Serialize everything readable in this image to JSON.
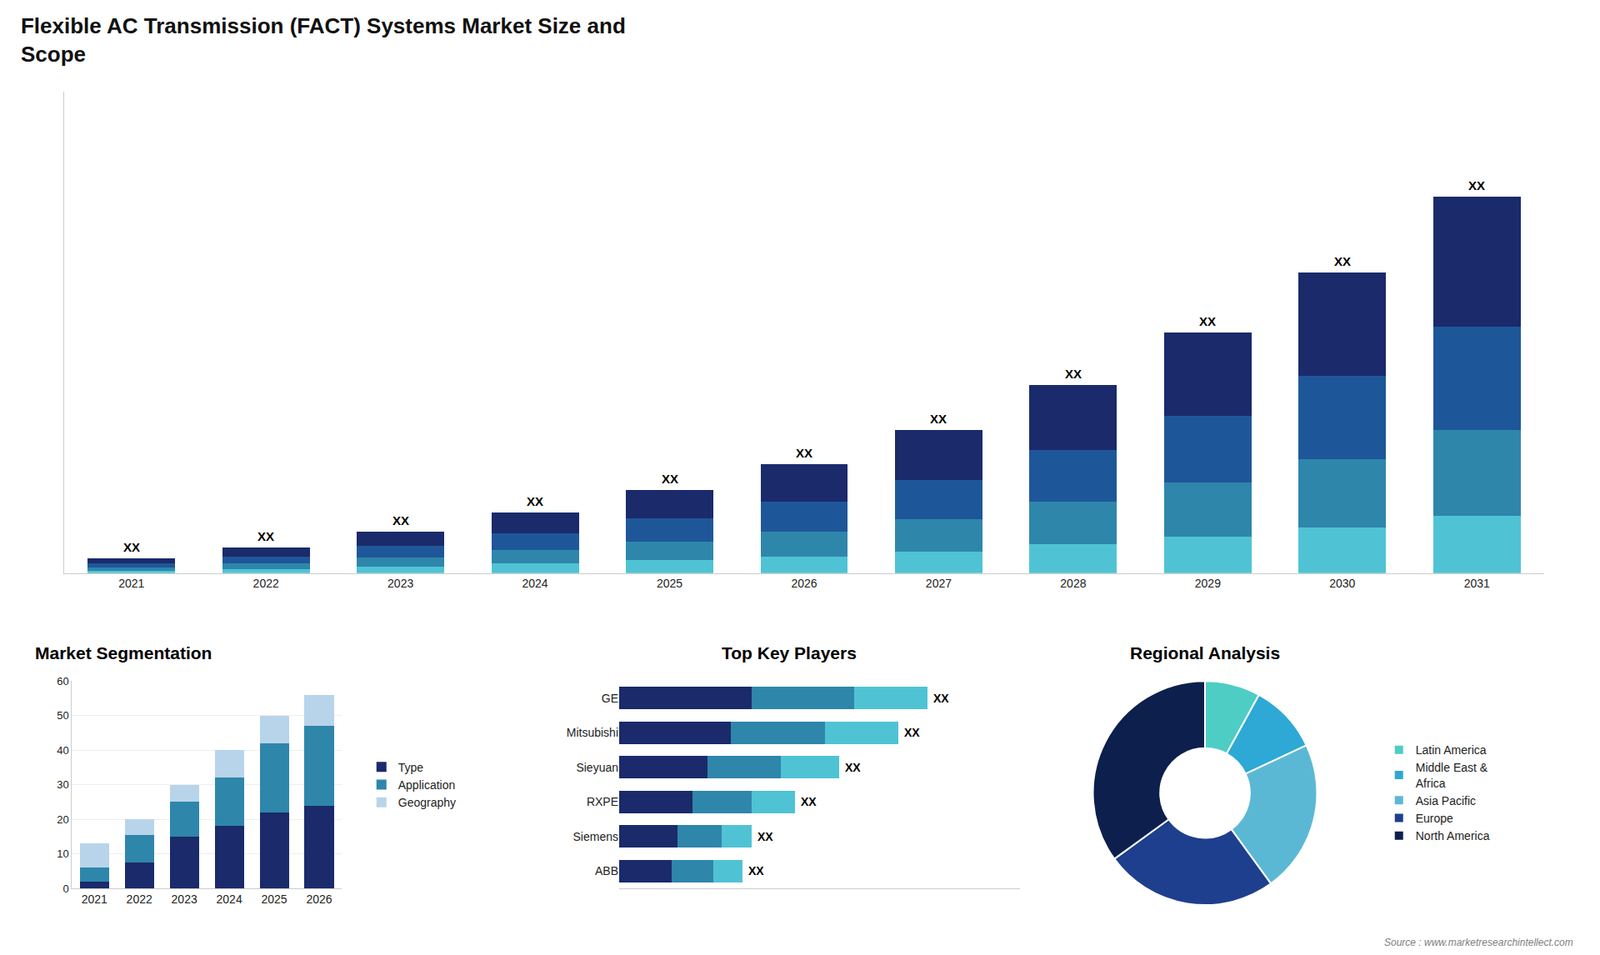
{
  "chart_data": [
    {
      "type": "bar",
      "title": "Flexible AC Transmission (FACT) Systems Market Size and\nScope",
      "categories": [
        "2021",
        "2022",
        "2023",
        "2024",
        "2025",
        "2026",
        "2027",
        "2028",
        "2029",
        "2030",
        "2031"
      ],
      "series": [
        {
          "color": "#4fc3d4",
          "values": [
            0.4,
            0.8,
            1.2,
            1.8,
            2.5,
            3.2,
            4.2,
            5.5,
            7.0,
            8.8,
            11.0
          ]
        },
        {
          "color": "#2e86ab",
          "values": [
            0.6,
            1.0,
            1.8,
            2.6,
            3.6,
            4.8,
            6.2,
            8.2,
            10.5,
            13.2,
            16.5
          ]
        },
        {
          "color": "#1e5799",
          "values": [
            0.8,
            1.4,
            2.2,
            3.2,
            4.4,
            5.8,
            7.6,
            10.0,
            12.8,
            16.0,
            20.0
          ]
        },
        {
          "color": "#1b2a6b",
          "values": [
            1.0,
            1.8,
            2.8,
            4.0,
            5.5,
            7.2,
            9.5,
            12.5,
            16.0,
            20.0,
            25.0
          ]
        }
      ],
      "stacked": true,
      "ylim": [
        0,
        92.8
      ],
      "tick_labels": "x",
      "grid": false,
      "annotations": [
        "XX",
        "XX",
        "XX",
        "XX",
        "XX",
        "XX",
        "XX",
        "XX",
        "XX",
        "XX",
        "XX"
      ]
    },
    {
      "type": "bar",
      "title": "Market Segmentation",
      "categories": [
        "2021",
        "2022",
        "2023",
        "2024",
        "2025",
        "2026"
      ],
      "series": [
        {
          "name": "Type",
          "color": "#1b2a6b",
          "values": [
            2,
            7.5,
            15,
            18,
            22,
            24
          ]
        },
        {
          "name": "Application",
          "color": "#2e86ab",
          "values": [
            4,
            8,
            10,
            14,
            20,
            23
          ]
        },
        {
          "name": "Geography",
          "color": "#b8d4ea",
          "values": [
            7,
            4.5,
            5,
            8,
            8,
            9
          ]
        }
      ],
      "stacked": true,
      "ylim": [
        0,
        60
      ],
      "yticks": [
        0,
        10,
        20,
        30,
        40,
        50,
        60
      ],
      "grid": true,
      "legend": "right"
    },
    {
      "type": "bar",
      "orientation": "horizontal",
      "title": "Top Key Players",
      "categories": [
        "GE",
        "Mitsubishi",
        "Sieyuan",
        "RXPE",
        "Siemens",
        "ABB"
      ],
      "series": [
        {
          "color": "#1b2a6b",
          "values": [
            4.5,
            3.8,
            3.0,
            2.5,
            2.0,
            1.8
          ]
        },
        {
          "color": "#2e86ab",
          "values": [
            3.5,
            3.2,
            2.5,
            2.0,
            1.5,
            1.4
          ]
        },
        {
          "color": "#4fc3d4",
          "values": [
            2.5,
            2.5,
            2.0,
            1.5,
            1.0,
            1.0
          ]
        }
      ],
      "stacked": true,
      "xlim": [
        0,
        13.65
      ],
      "tick_labels": "y",
      "grid": false,
      "annotations": [
        "XX",
        "XX",
        "XX",
        "XX",
        "XX",
        "XX"
      ]
    },
    {
      "type": "pie",
      "title": "Regional Analysis",
      "categories": [
        "Latin America",
        "Middle East &\nAfrica",
        "Asia Pacific",
        "Europe",
        "North America"
      ],
      "values": [
        8,
        10,
        22,
        25,
        35
      ],
      "colors": [
        "#4ecdc4",
        "#2ea8d4",
        "#5bb8d4",
        "#1e3f8e",
        "#0d1f4c"
      ],
      "legend": "right",
      "annotations": [
        "Source : www.marketresearchintellect.com"
      ]
    }
  ]
}
